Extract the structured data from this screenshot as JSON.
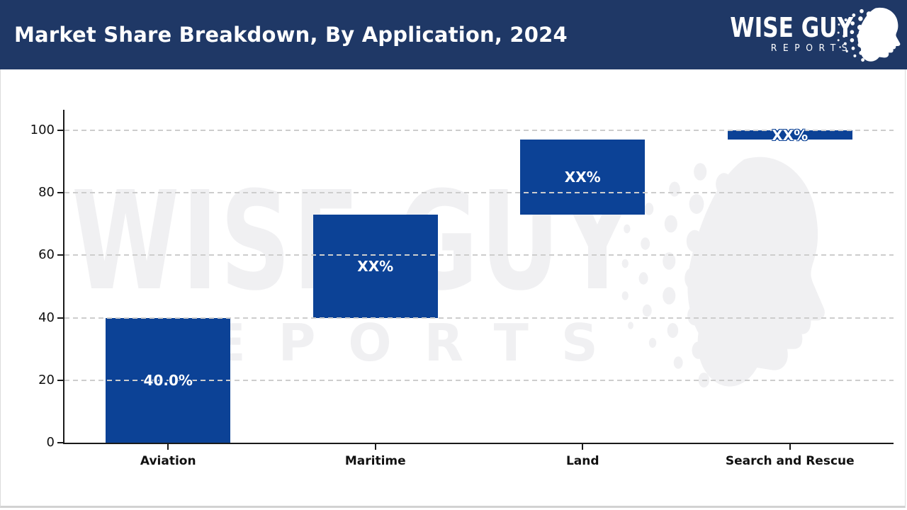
{
  "header": {
    "title": "Market Share Breakdown, By Application, 2024",
    "bg_color": "#1f3866",
    "logo": {
      "line1": "WISE GUY",
      "line2": "REPORTS",
      "face_icon": "dotted-face-profile"
    }
  },
  "watermark": {
    "line1": "WISE GUY",
    "line2": "REPORTS"
  },
  "chart_data": {
    "type": "bar",
    "variant": "stacked-waterfall",
    "title": "Market Share Breakdown, By Application, 2024",
    "categories": [
      "Aviation",
      "Maritime",
      "Land",
      "Search and Rescue"
    ],
    "series": [
      {
        "name": "Market Share %",
        "values": [
          40,
          33,
          24,
          3
        ]
      }
    ],
    "segments": [
      {
        "category": "Aviation",
        "start": 0,
        "end": 40,
        "label": "40.0%"
      },
      {
        "category": "Maritime",
        "start": 40,
        "end": 73,
        "label": "XX%"
      },
      {
        "category": "Land",
        "start": 73,
        "end": 97,
        "label": "XX%"
      },
      {
        "category": "Search and Rescue",
        "start": 97,
        "end": 100,
        "label": "XX%"
      }
    ],
    "yticks": [
      0,
      20,
      40,
      60,
      80,
      100
    ],
    "ylim": [
      0,
      106.6
    ],
    "xlabel": "",
    "ylabel": "",
    "bar_color": "#0c4296",
    "label_color": "#ffffff",
    "grid": {
      "axis": "y",
      "style": "dashed",
      "color": "#cdcdcd",
      "drawn_over_bars": true
    },
    "legend": "none"
  }
}
